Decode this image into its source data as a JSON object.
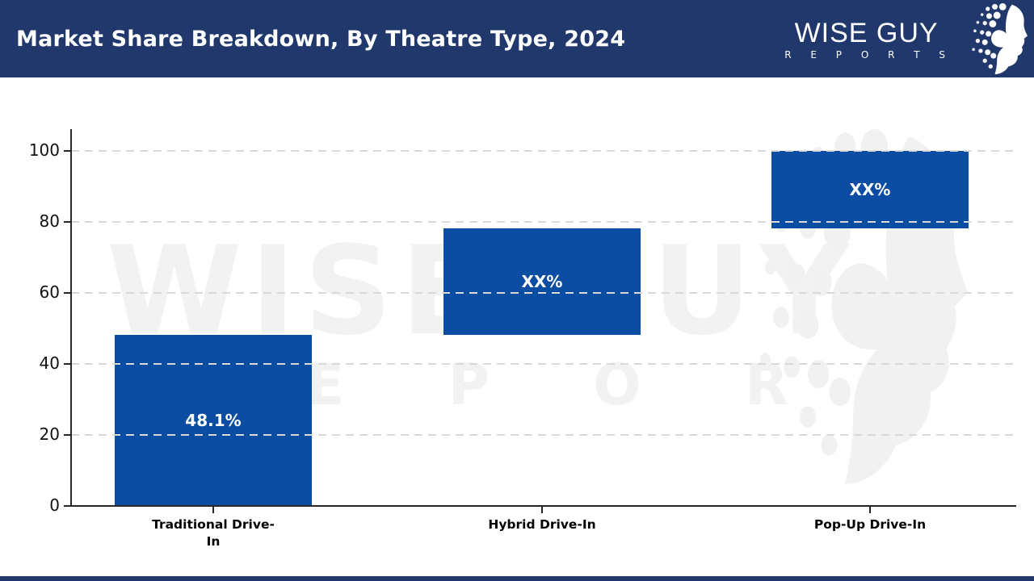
{
  "header": {
    "title": "Market Share Breakdown, By Theatre Type, 2024",
    "logo": {
      "name": "WISE GUY",
      "subtitle": "R E P O R T S"
    }
  },
  "watermark": {
    "line1": "WISE GUY",
    "line2": "R E P O R T S"
  },
  "chart_data": {
    "type": "bar",
    "subtype": "floating-segment-waterfall",
    "title": "Market Share Breakdown, By Theatre Type, 2024",
    "categories": [
      "Traditional Drive-In",
      "Hybrid Drive-In",
      "Pop-Up Drive-In"
    ],
    "category_label_lines": [
      [
        "Traditional Drive-",
        "In"
      ],
      [
        "Hybrid Drive-In"
      ],
      [
        "Pop-Up Drive-In"
      ]
    ],
    "segments": [
      {
        "category": "Traditional Drive-In",
        "start": 0,
        "end": 48.1,
        "label": "48.1%"
      },
      {
        "category": "Hybrid Drive-In",
        "start": 48.1,
        "end": 78.2,
        "label": "XX%"
      },
      {
        "category": "Pop-Up Drive-In",
        "start": 78.2,
        "end": 100,
        "label": "XX%"
      }
    ],
    "yticks": [
      0,
      20,
      40,
      60,
      80,
      100
    ],
    "ylim": [
      0,
      106
    ],
    "xlabel": "",
    "ylabel": "",
    "grid": "horizontal-dashed",
    "legend": "none",
    "bar_color": "#0b4da2",
    "bar_label_color": "#ffffff"
  },
  "colors": {
    "header_bg": "#20386b",
    "footer_bg": "#20386b",
    "bar": "#0b4da2",
    "axis": "#262626",
    "gridline": "#d9d9d9",
    "tick_text": "#111111",
    "watermark": "#f2f2f2"
  }
}
